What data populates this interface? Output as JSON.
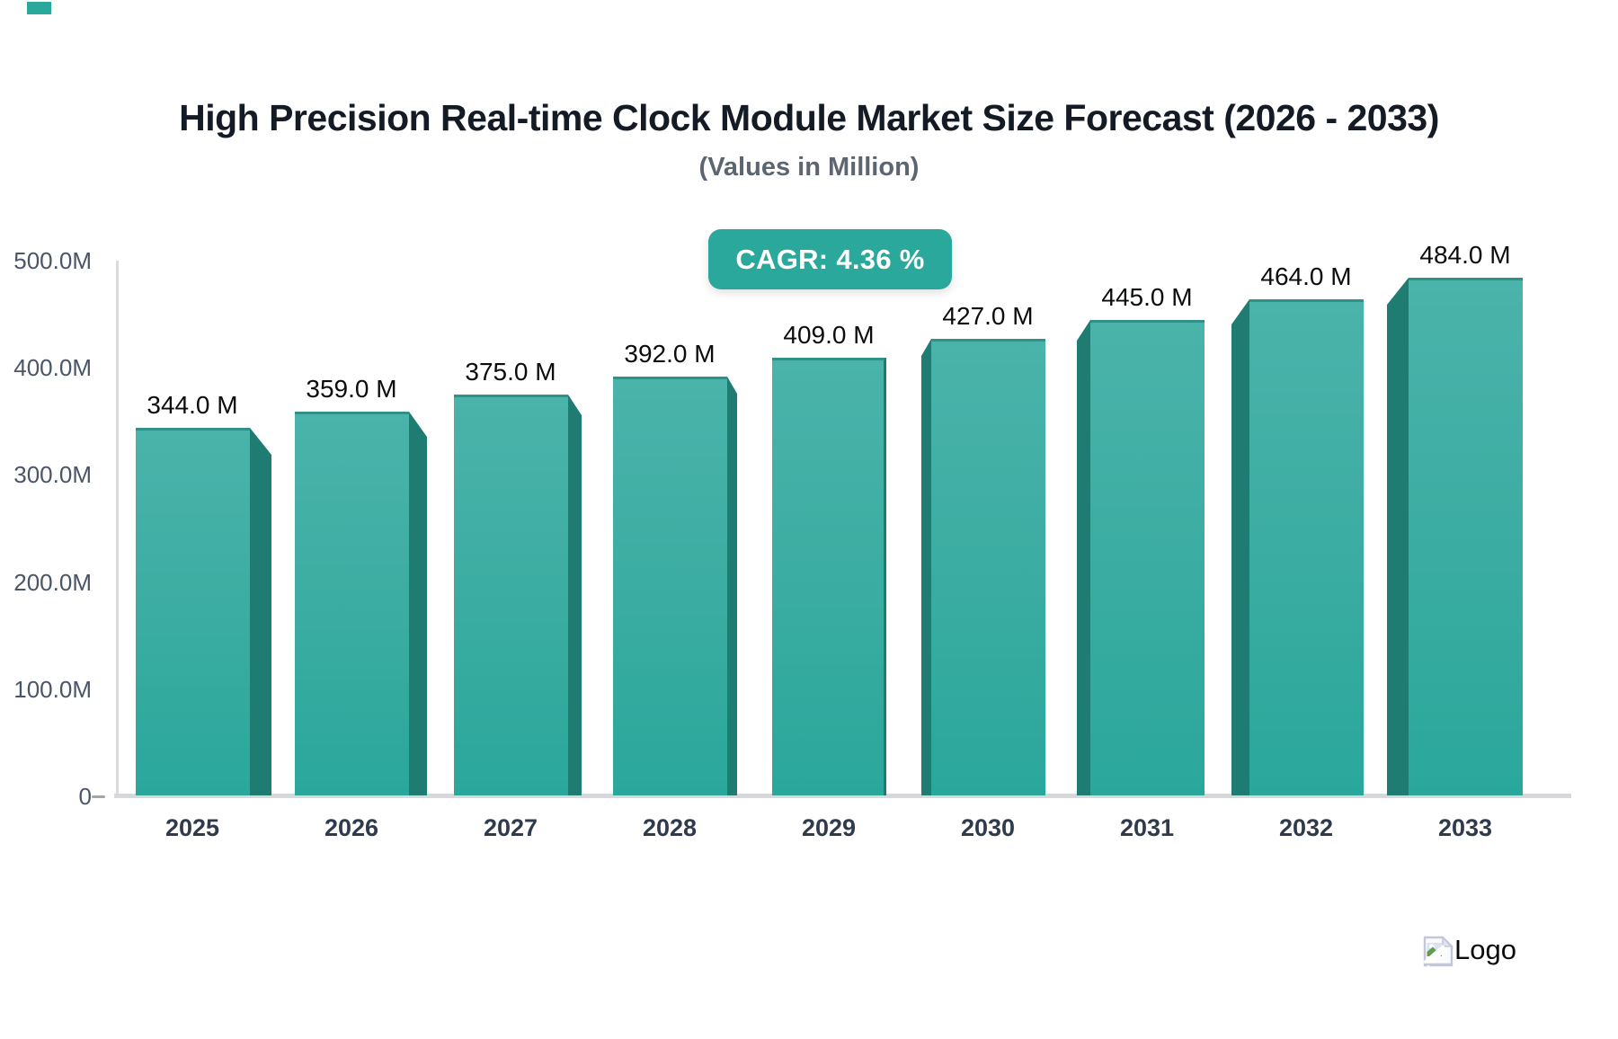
{
  "header": {
    "title": "High Precision Real-time Clock Module Market Size Forecast (2026 - 2033)",
    "subtitle": "(Values in Million)"
  },
  "badge": {
    "label": "CAGR: 4.36 %"
  },
  "logo": {
    "alt": "Logo"
  },
  "chart_data": {
    "type": "bar",
    "title": "High Precision Real-time Clock Module Market Size Forecast (2026 - 2033)",
    "subtitle": "(Values in Million)",
    "unit": "Million",
    "categories": [
      "2025",
      "2026",
      "2027",
      "2028",
      "2029",
      "2030",
      "2031",
      "2032",
      "2033"
    ],
    "values": [
      344,
      359,
      375,
      392,
      409,
      427,
      445,
      464,
      484
    ],
    "value_labels": [
      "344.0 M",
      "359.0 M",
      "375.0 M",
      "392.0 M",
      "409.0 M",
      "427.0 M",
      "445.0 M",
      "464.0 M",
      "484.0 M"
    ],
    "yticks": [
      {
        "label": "500.0M",
        "value": 500
      },
      {
        "label": "400.0M",
        "value": 400
      },
      {
        "label": "300.0M",
        "value": 300
      },
      {
        "label": "200.0M",
        "value": 200
      },
      {
        "label": "100.0M",
        "value": 100
      },
      {
        "label": "0",
        "value": 0
      }
    ],
    "ylim": [
      0,
      500
    ],
    "grid": false,
    "legend": "none",
    "annotations": [
      "CAGR: 4.36 %"
    ],
    "colors": {
      "bar_top": "#4ab3aa",
      "bar_bottom": "#2aa79b",
      "bar_side": "#1f7c73",
      "bar_top_edge": "#2f9188",
      "badge_bg": "#29a89b",
      "axis": "#d6d8db",
      "tick": "#9fa6ad",
      "y_label": "#4a5568",
      "x_label": "#2f3b4c",
      "value_label": "#0a0c0e"
    }
  }
}
